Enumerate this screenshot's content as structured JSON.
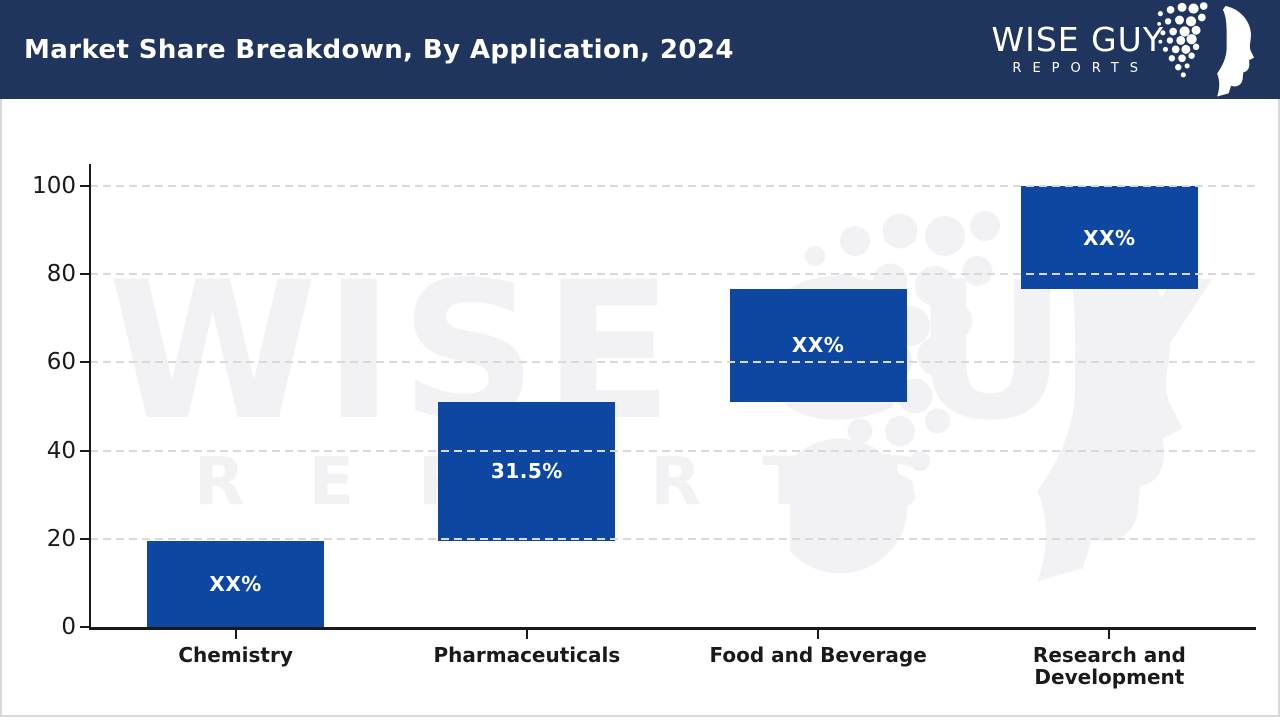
{
  "header": {
    "title": "Market Share Breakdown, By Application, 2024",
    "logo": {
      "wordmark": "WISE GUY",
      "subtext": "REPORTS"
    }
  },
  "watermark": {
    "line1": "WISE GUY",
    "line2": "REPORTS"
  },
  "chart_data": {
    "type": "bar",
    "subtype": "floating-segment-bars-waterfall-style",
    "title": "Market Share Breakdown, By Application, 2024",
    "categories": [
      "Chemistry",
      "Pharmaceuticals",
      "Food and Beverage",
      "Research and Development"
    ],
    "series": [
      {
        "name": "Market share segment (%)",
        "ranges": [
          [
            0,
            19.6
          ],
          [
            19.6,
            51.1
          ],
          [
            51.1,
            76.6
          ],
          [
            76.6,
            100
          ]
        ],
        "spans": [
          19.6,
          31.5,
          25.5,
          23.4
        ],
        "labels": [
          "XX%",
          "31.5%",
          "XX%",
          "XX%"
        ]
      }
    ],
    "xlabel": "",
    "ylabel": "",
    "ylim": [
      0,
      105
    ],
    "yticks": [
      0,
      20,
      40,
      60,
      80,
      100
    ],
    "grid": "horizontal-dashed",
    "legend": "none",
    "colors": {
      "header_bg": "#1f355e",
      "bar": "#0d47a1",
      "bar_label": "#ffffff",
      "grid": "#d9d9d9",
      "axis": "#1a1a1a",
      "tick_label": "#1a1a1a",
      "watermark": "#f2f2f4"
    }
  }
}
